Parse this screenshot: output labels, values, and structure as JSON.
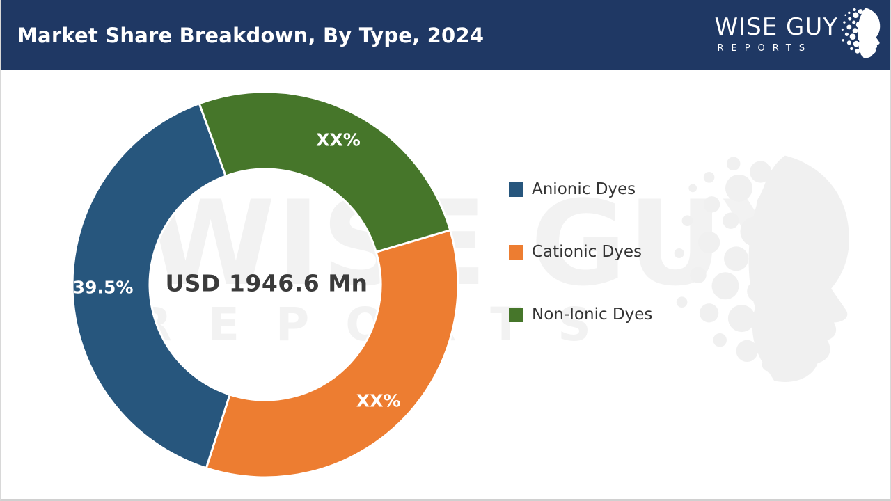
{
  "page": {
    "background": "#ffffff",
    "border_color": "#d8d8d8"
  },
  "header": {
    "title": "Market Share Breakdown, By Type, 2024",
    "background": "#1F3864",
    "text_color": "#ffffff",
    "logo": {
      "wordmark": "WISE GUY",
      "subtitle": "REPORTS"
    }
  },
  "watermark": {
    "line1": "WISE GUY",
    "line2": "REPORTS"
  },
  "chart_data": {
    "type": "donut",
    "title": "Market Share Breakdown, By Type, 2024",
    "center_label": "USD 1946.6 Mn",
    "start_angle_deg": 110,
    "direction": "counterclockwise",
    "legend_position": "right",
    "segments": [
      {
        "label": "Anionic Dyes",
        "display_label": "39.5%",
        "value_pct": 39.5,
        "color": "#27567D"
      },
      {
        "label": "Cationic Dyes",
        "display_label": "XX%",
        "value_pct": 34.5,
        "color": "#ED7D31"
      },
      {
        "label": "Non-Ionic Dyes",
        "display_label": "XX%",
        "value_pct": 26.0,
        "color": "#46762A"
      }
    ]
  }
}
